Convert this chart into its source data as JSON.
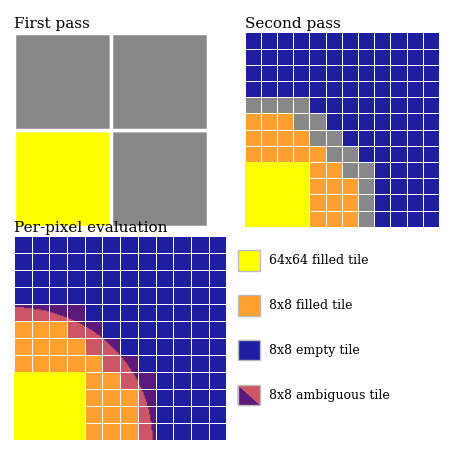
{
  "title_first": "First pass",
  "title_second": "Second pass",
  "title_third": "Per-pixel evaluation",
  "color_yellow": "#FFFF00",
  "color_orange": "#FFA030",
  "color_blue": "#1E1EA0",
  "color_gray": "#888888",
  "color_purple": "#5B1A7A",
  "color_pink": "#CC5566",
  "color_white": "#FFFFFF",
  "legend_labels": [
    "64x64 filled tile",
    "8x8 filled tile",
    "8x8 empty tile",
    "8x8 ambiguous tile"
  ]
}
